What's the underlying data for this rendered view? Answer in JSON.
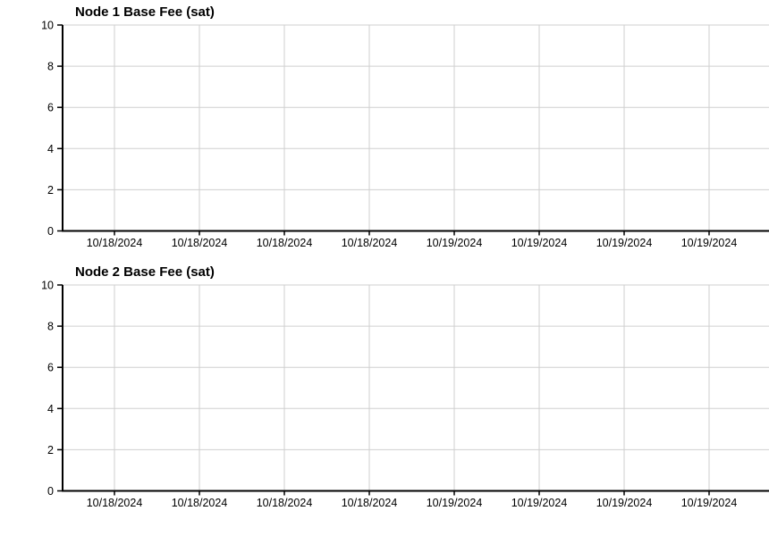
{
  "page": {
    "background": "#ffffff"
  },
  "chart_data": [
    {
      "type": "line",
      "title": "Node 1 Base Fee (sat)",
      "series": [],
      "ylim": [
        0,
        10
      ],
      "yticks": [
        0,
        2,
        4,
        6,
        8,
        10
      ],
      "xtick_labels": [
        "10/18/2024",
        "10/18/2024",
        "10/18/2024",
        "10/18/2024",
        "10/19/2024",
        "10/19/2024",
        "10/19/2024",
        "10/19/2024"
      ],
      "grid": true,
      "colors": {
        "grid": "#cfcfcf",
        "axis": "#000000",
        "text": "#000000",
        "background": "#ffffff"
      }
    },
    {
      "type": "line",
      "title": "Node 2 Base Fee (sat)",
      "series": [],
      "ylim": [
        0,
        10
      ],
      "yticks": [
        0,
        2,
        4,
        6,
        8,
        10
      ],
      "xtick_labels": [
        "10/18/2024",
        "10/18/2024",
        "10/18/2024",
        "10/18/2024",
        "10/19/2024",
        "10/19/2024",
        "10/19/2024",
        "10/19/2024"
      ],
      "grid": true,
      "colors": {
        "grid": "#cfcfcf",
        "axis": "#000000",
        "text": "#000000",
        "background": "#ffffff"
      }
    }
  ]
}
